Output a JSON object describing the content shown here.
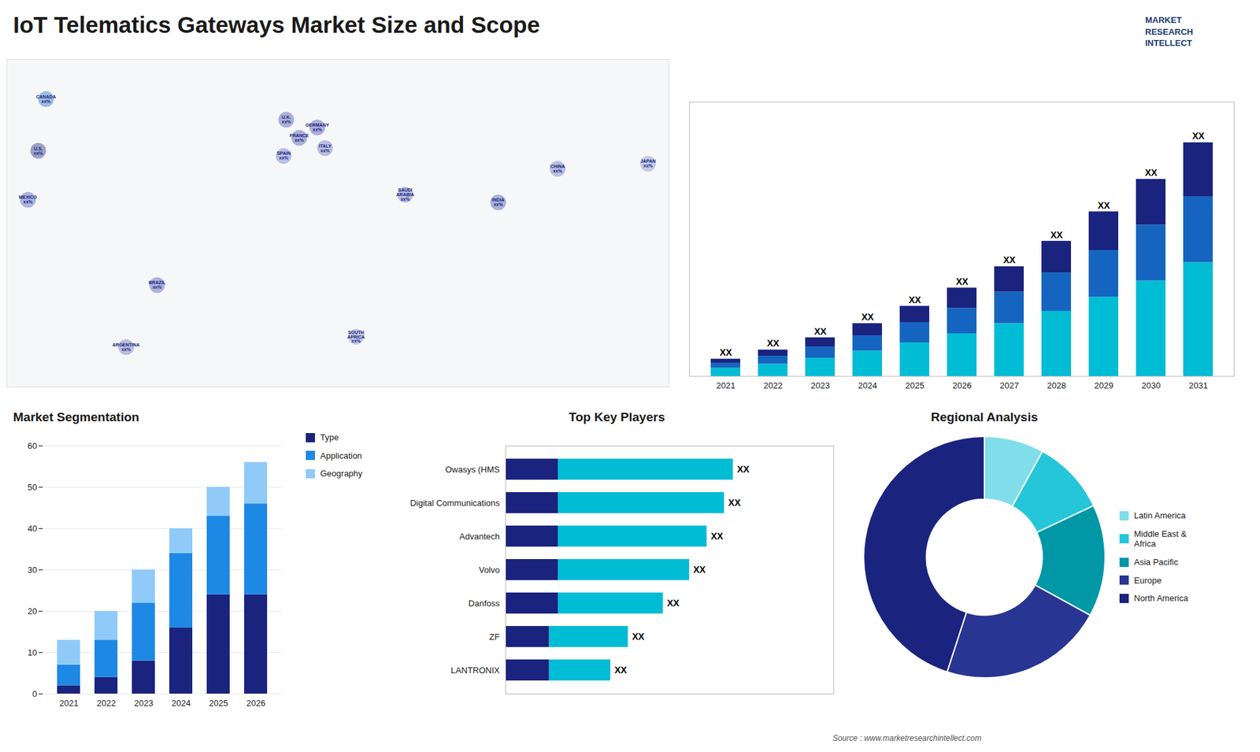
{
  "chart_data": [
    {
      "type": "bar",
      "title": "IoT Telematics Gateways Market Size and Scope",
      "annotations": [
        "MARKET",
        "RESEARCH",
        "INTELLECT"
      ],
      "stacked": true,
      "categories": [
        "2021",
        "2022",
        "2023",
        "2024",
        "2025",
        "2026",
        "2027",
        "2028",
        "2029",
        "2030",
        "2031"
      ],
      "series": [
        {
          "color": "#00bcd4",
          "values": [
            0.8,
            1.2,
            1.8,
            2.5,
            3.3,
            4.2,
            5.2,
            6.4,
            7.8,
            9.4,
            11.2
          ]
        },
        {
          "color": "#1565c0",
          "values": [
            0.5,
            0.8,
            1.1,
            1.5,
            2.0,
            2.5,
            3.1,
            3.8,
            4.6,
            5.5,
            6.5
          ]
        },
        {
          "color": "#1a237e",
          "values": [
            0.4,
            0.6,
            0.9,
            1.2,
            1.6,
            2.0,
            2.5,
            3.1,
            3.8,
            4.5,
            5.3
          ]
        }
      ],
      "ylim": [
        0,
        27
      ],
      "data_labels": true,
      "value_labels": [
        "XX",
        "XX",
        "XX",
        "XX",
        "XX",
        "XX",
        "XX",
        "XX",
        "XX",
        "XX",
        "XX"
      ],
      "tick_labels": "x"
    },
    {
      "type": "map",
      "labels": [
        "CANADA\nxx%",
        "U.S.\nxx%",
        "MEXICO\nxx%",
        "BRAZIL\nxx%",
        "ARGENTINA\nxx%",
        "U.K.\nxx%",
        "FRANCE\nxx%",
        "SPAIN\nxx%",
        "GERMANY\nxx%",
        "ITALY\nxx%",
        "SAUDI\nARABIA\nxx%",
        "SOUTH\nAFRICA\nxx%",
        "CHINA\nxx%",
        "INDIA\nxx%",
        "JAPAN\nxx%"
      ],
      "lon": [
        -95,
        -98,
        -102,
        -52,
        -64,
        -2,
        3,
        -3,
        10,
        13,
        44,
        25,
        103,
        80,
        138
      ],
      "lat": [
        62,
        42,
        23,
        -10,
        -34,
        54,
        47,
        40,
        51,
        43,
        25,
        -30,
        35,
        22,
        37
      ],
      "colors": [
        "#1565c0",
        "#1a237e",
        "#3f51b5",
        "#3f51b5",
        "#5c6bc0",
        "#3949ab",
        "#3949ab",
        "#5c6bc0",
        "#3949ab",
        "#5c6bc0",
        "#5c6bc0",
        "#7986cb",
        "#5c6bc0",
        "#3949ab",
        "#7986cb"
      ]
    },
    {
      "type": "bar",
      "title": "Market Segmentation",
      "stacked": true,
      "categories": [
        "2021",
        "2022",
        "2023",
        "2024",
        "2025",
        "2026"
      ],
      "series": [
        {
          "name": "Type",
          "color": "#1a237e",
          "values": [
            2,
            4,
            8,
            16,
            24,
            24
          ]
        },
        {
          "name": "Application",
          "color": "#1e88e5",
          "values": [
            5,
            9,
            14,
            18,
            19,
            22
          ]
        },
        {
          "name": "Geography",
          "color": "#90caf9",
          "values": [
            6,
            7,
            8,
            6,
            7,
            10
          ]
        }
      ],
      "ylim": [
        0,
        60
      ],
      "yticks": [
        0,
        10,
        20,
        30,
        40,
        50,
        60
      ],
      "grid": true,
      "legend": "right"
    },
    {
      "type": "bar",
      "title": "Top Key Players",
      "orientation": "horizontal",
      "stacked": true,
      "categories": [
        "Owasys (HMS",
        "Digital Communications",
        "Advantech",
        "Volvo",
        "Danfoss",
        "ZF",
        "LANTRONIX"
      ],
      "series": [
        {
          "color": "#1a237e",
          "values": [
            0.12,
            0.12,
            0.12,
            0.12,
            0.12,
            0.1,
            0.1
          ]
        },
        {
          "color": "#00bcd4",
          "values": [
            0.4,
            0.38,
            0.34,
            0.3,
            0.24,
            0.18,
            0.14
          ]
        }
      ],
      "xlim": [
        0,
        0.75
      ],
      "data_labels": true,
      "value_labels": [
        "XX",
        "XX",
        "XX",
        "XX",
        "XX",
        "XX",
        "XX"
      ],
      "tick_labels": "y"
    },
    {
      "type": "donut",
      "title": "Regional Analysis",
      "categories": [
        "Latin America",
        "Middle East &\nAfrica",
        "Asia Pacific",
        "Europe",
        "North America"
      ],
      "values": [
        8,
        10,
        15,
        22,
        45
      ],
      "colors": [
        "#80deea",
        "#26c6da",
        "#0097a7",
        "#283593",
        "#1a237e"
      ],
      "legend": "right",
      "annotations": [
        "Source : www.marketresearchintellect.com"
      ]
    }
  ]
}
